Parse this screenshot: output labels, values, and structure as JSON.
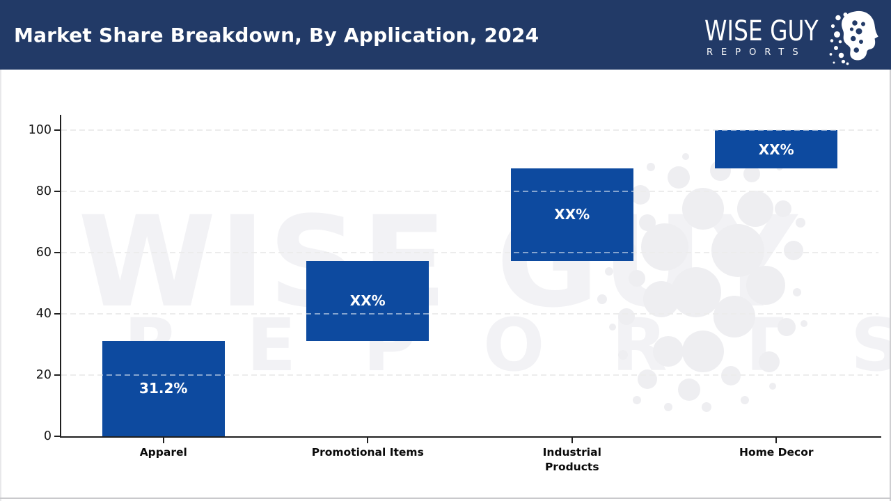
{
  "header": {
    "title": "Market Share Breakdown, By Application, 2024",
    "logo": {
      "line1": "WISE GUY",
      "line2": "REPORTS"
    },
    "bg_color": "#223a67"
  },
  "watermark": {
    "line1": "WISE GUY",
    "line2": "REPORTS"
  },
  "colors": {
    "header_bg": "#223a67",
    "bar_blue": "#0d4a9f",
    "axis": "#1f1f1f",
    "gridline": "#d9d9d9",
    "watermark": "#f2f2f5",
    "title_text": "#ffffff",
    "bar_label_text": "#ffffff"
  },
  "chart_data": {
    "type": "bar",
    "subtype": "waterfall-stacked-percentage",
    "title": "Market Share Breakdown, By Application, 2024",
    "categories": [
      "Apparel",
      "Promotional Items",
      "Industrial Products",
      "Home Decor"
    ],
    "x_tick_display": [
      "Apparel",
      "Promotional Items",
      "Industrial\nProducts",
      "Home Decor"
    ],
    "segments": [
      {
        "category": "Apparel",
        "start": 0,
        "end": 31.2,
        "value_label": "31.2%"
      },
      {
        "category": "Promotional Items",
        "start": 31.2,
        "end": 57.3,
        "value_label": "XX%"
      },
      {
        "category": "Industrial Products",
        "start": 57.3,
        "end": 87.5,
        "value_label": "XX%"
      },
      {
        "category": "Home Decor",
        "start": 87.5,
        "end": 100,
        "value_label": "XX%"
      }
    ],
    "xlabel": "",
    "ylabel": "",
    "ylim": [
      0,
      100
    ],
    "yticks": [
      0,
      20,
      40,
      60,
      80,
      100
    ],
    "grid": {
      "axis": "y",
      "style": "dashed"
    },
    "legend": "none"
  }
}
